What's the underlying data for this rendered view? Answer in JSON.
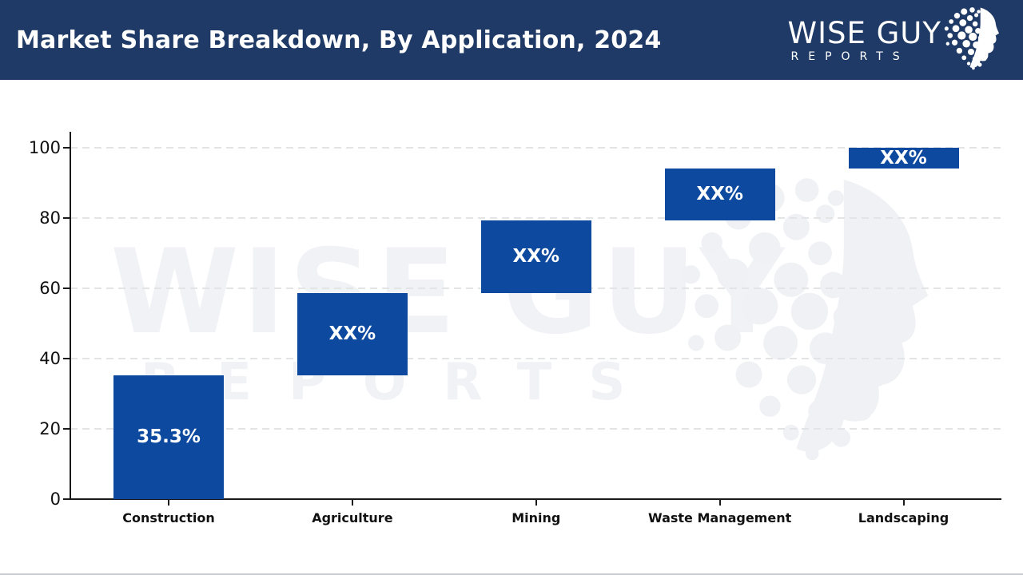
{
  "header": {
    "title": "Market Share Breakdown, By Application, 2024",
    "logo_line1": "WISE GUY",
    "logo_line2": "REPORTS"
  },
  "watermark": {
    "line1": "WISE GUY",
    "line2": "REPORTS",
    "head_icon": "dotted-head-profile"
  },
  "colors": {
    "header_bg": "#1f3a66",
    "bar": "#0d4a9f",
    "value_label": "#ffffff",
    "axis": "#1a1a1a",
    "grid": "#e3e4e6",
    "watermark": "#f1f2f6"
  },
  "chart_data": {
    "type": "bar",
    "subtype": "waterfall",
    "title": "Market Share Breakdown, By Application, 2024",
    "categories": [
      "Construction",
      "Agriculture",
      "Mining",
      "Waste Management",
      "Landscaping"
    ],
    "bars": [
      {
        "category": "Construction",
        "start": 0,
        "end": 35.3,
        "label": "35.3%"
      },
      {
        "category": "Agriculture",
        "start": 35.3,
        "end": 58.6,
        "label": "XX%"
      },
      {
        "category": "Mining",
        "start": 58.6,
        "end": 79.3,
        "label": "XX%"
      },
      {
        "category": "Waste Management",
        "start": 79.3,
        "end": 94.0,
        "label": "XX%"
      },
      {
        "category": "Landscaping",
        "start": 94.0,
        "end": 100.0,
        "label": "XX%"
      }
    ],
    "yticks": [
      0,
      20,
      40,
      60,
      80,
      100
    ],
    "ylim": [
      0,
      104.5
    ],
    "xlabel": "",
    "ylabel": "",
    "grid": "dashed-horizontal",
    "legend": "none"
  }
}
